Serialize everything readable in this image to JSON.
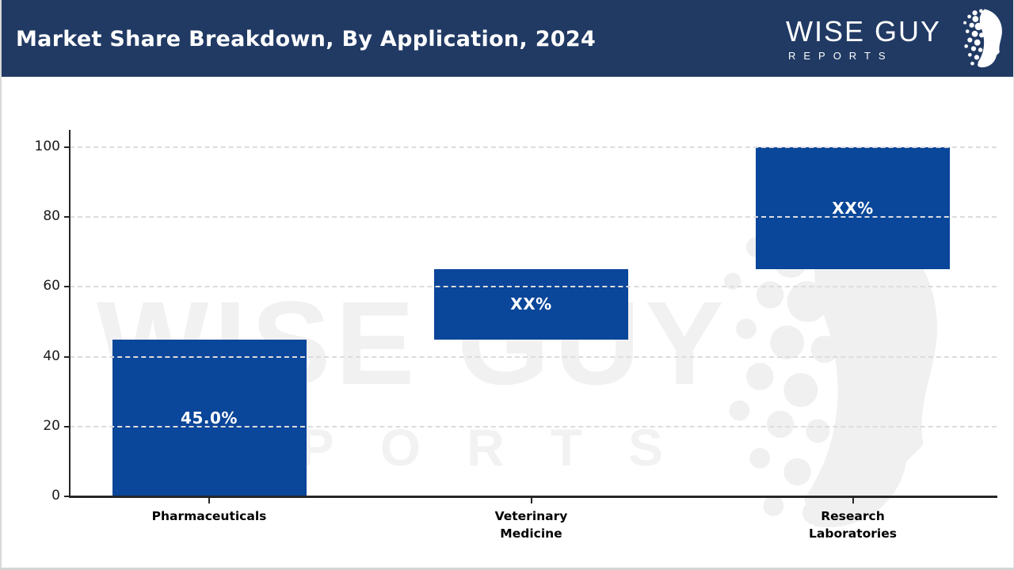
{
  "header": {
    "title": "Market Share Breakdown, By Application, 2024",
    "logo": {
      "brand": "WISE GUY",
      "sub": "REPORTS"
    }
  },
  "watermark": {
    "brand": "WISE GUY",
    "sub": "REPORTS"
  },
  "chart_data": {
    "type": "bar",
    "subtype": "waterfall",
    "title": "Market Share Breakdown, By Application, 2024",
    "categories": [
      "Pharmaceuticals",
      "Veterinary\nMedicine",
      "Research\nLaboratories"
    ],
    "segments": [
      {
        "category": "Pharmaceuticals",
        "start": 0,
        "end": 45,
        "label": "45.0%"
      },
      {
        "category": "Veterinary Medicine",
        "start": 45,
        "end": 65,
        "label": "XX%"
      },
      {
        "category": "Research Laboratories",
        "start": 65,
        "end": 100,
        "label": "XX%"
      }
    ],
    "xlabel": "",
    "ylabel": "",
    "ylim": [
      0,
      100
    ],
    "yticks": [
      0,
      20,
      40,
      60,
      80,
      100
    ],
    "grid": "horizontal-dashed",
    "legend": "none",
    "bar_color": "#0a4699",
    "value_label_color": "#ffffff"
  },
  "colors": {
    "header_bg": "#213a64",
    "header_text": "#ffffff",
    "bar": "#0a4699",
    "grid": "#dcdcdc",
    "axis": "#262626",
    "tick_text": "#1a1a1a",
    "watermark": "#f1f1f1"
  }
}
